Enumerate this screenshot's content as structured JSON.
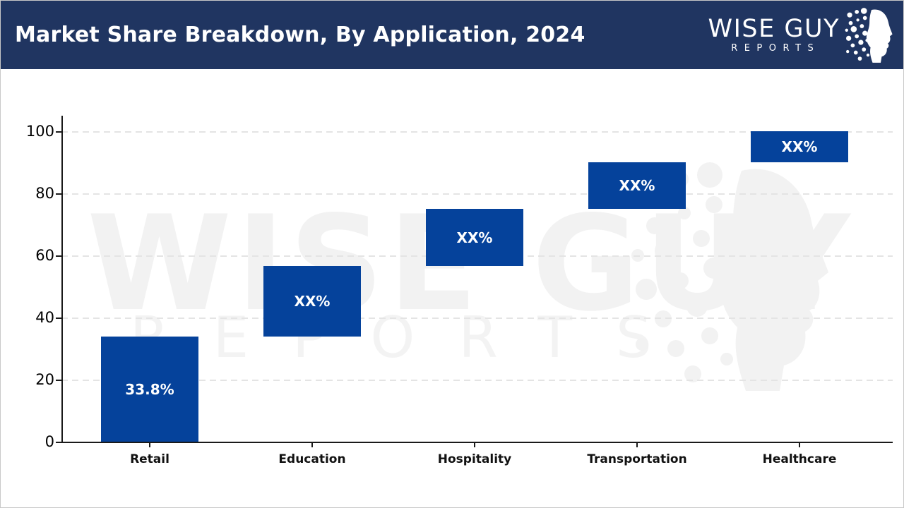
{
  "header": {
    "title": "Market Share Breakdown, By Application, 2024",
    "bg_color": "#203561",
    "logo": {
      "line1": "WISE GUY",
      "line2": "REPORTS"
    }
  },
  "watermark": {
    "line1": "WISE GUY",
    "line2": "REPORTS"
  },
  "chart_data": {
    "type": "waterfall",
    "title": "Market Share Breakdown, By Application, 2024",
    "categories": [
      "Retail",
      "Education",
      "Hospitality",
      "Transportation",
      "Healthcare"
    ],
    "segments": [
      {
        "category": "Retail",
        "start": 0,
        "end": 33.8,
        "label": "33.8%"
      },
      {
        "category": "Education",
        "start": 33.8,
        "end": 56.5,
        "label": "XX%"
      },
      {
        "category": "Hospitality",
        "start": 56.5,
        "end": 75,
        "label": "XX%"
      },
      {
        "category": "Transportation",
        "start": 75,
        "end": 90,
        "label": "XX%"
      },
      {
        "category": "Healthcare",
        "start": 90,
        "end": 100,
        "label": "XX%"
      }
    ],
    "y_ticks": [
      0,
      20,
      40,
      60,
      80,
      100
    ],
    "ylim": [
      0,
      105
    ],
    "xlabel": "",
    "ylabel": "",
    "bar_color": "#05429B",
    "bar_label_color": "#ffffff",
    "axis_color": "#1a1a1a",
    "grid": "dashed horizontal",
    "legend": "none"
  }
}
